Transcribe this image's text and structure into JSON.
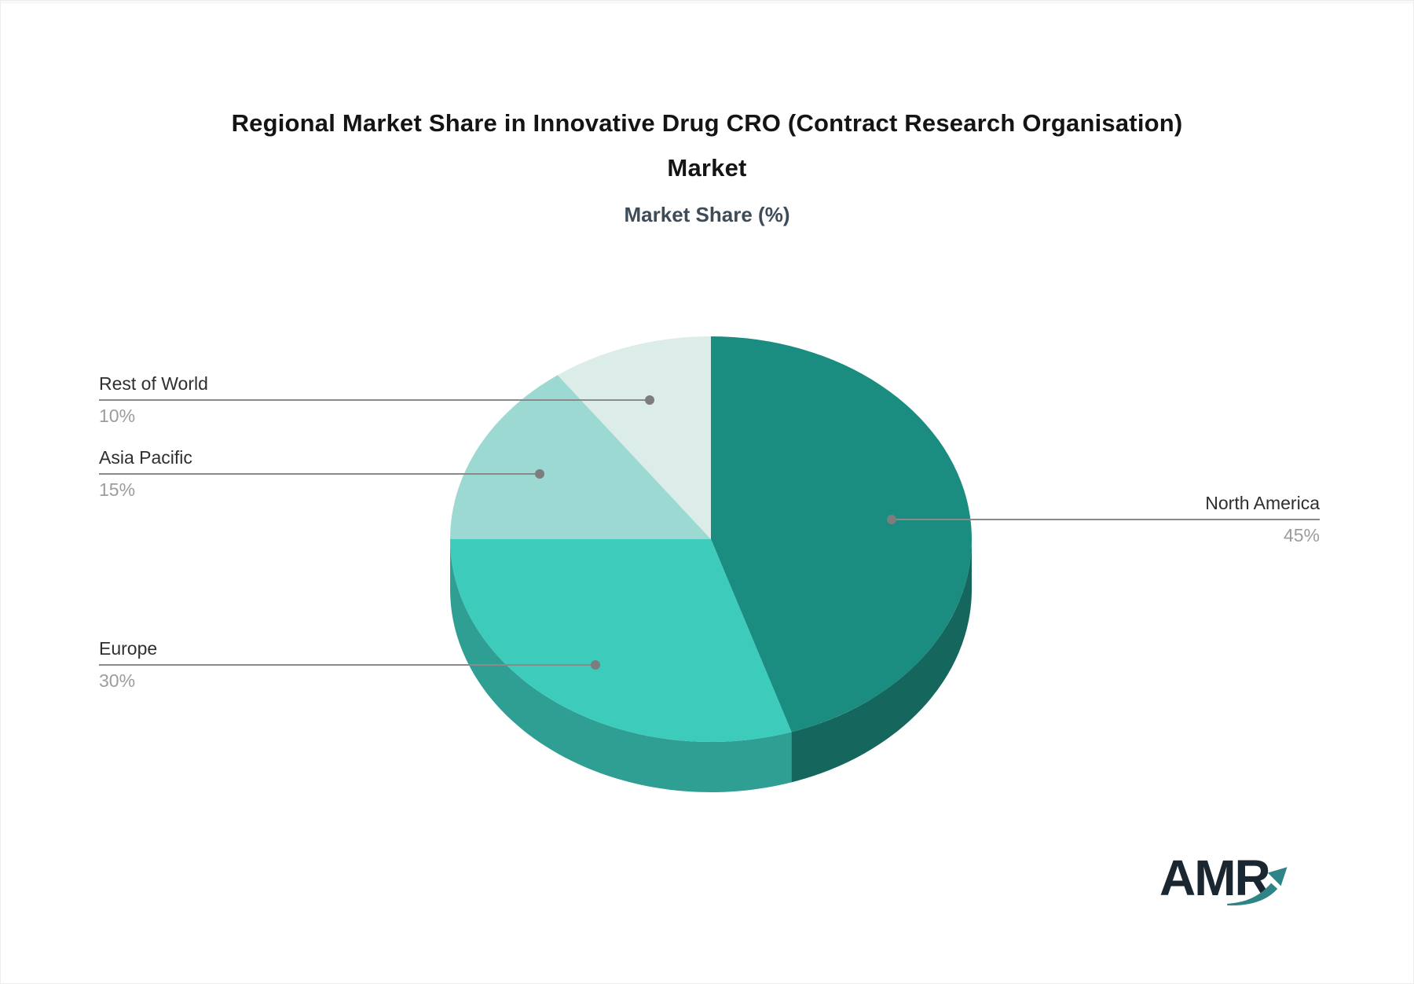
{
  "header": {
    "title_line1": "Regional Market Share in Innovative Drug CRO (Contract Research Organisation)",
    "title_line2": "Market",
    "subtitle": "Market Share (%)"
  },
  "chart_data": {
    "type": "pie",
    "title": "Regional Market Share in Innovative Drug CRO (Contract Research Organisation) Market",
    "subtitle": "Market Share (%)",
    "unit": "%",
    "start_angle_deg": 0,
    "direction": "clockwise",
    "labels": [
      "North America",
      "Europe",
      "Asia Pacific",
      "Rest of World"
    ],
    "values": [
      45,
      30,
      15,
      10
    ],
    "colors": [
      "#1b8c80",
      "#3dcbbc",
      "#9cd9d2",
      "#dbece9"
    ],
    "side_colors": [
      "#15665c",
      "#2f9e93",
      "#7fbfb8",
      "#b9d8d3"
    ],
    "style": "3d-pie",
    "legend": "none",
    "data_label_style": "callout lines with name above and percent below"
  },
  "callouts": [
    {
      "label": "North America",
      "value": "45%"
    },
    {
      "label": "Europe",
      "value": "30%"
    },
    {
      "label": "Asia Pacific",
      "value": "15%"
    },
    {
      "label": "Rest of World",
      "value": "10%"
    }
  ],
  "colors": {
    "leader_line": "#8a8a8a",
    "leader_dot": "#7d7d7d",
    "title_text": "#141414",
    "subtitle_text": "#3e4c59",
    "label_text": "#2f2f2f",
    "value_text": "#9c9c9c",
    "logo_text": "#1a2630",
    "logo_arrow": "#2e8487"
  },
  "logo": {
    "text": "AMR"
  }
}
